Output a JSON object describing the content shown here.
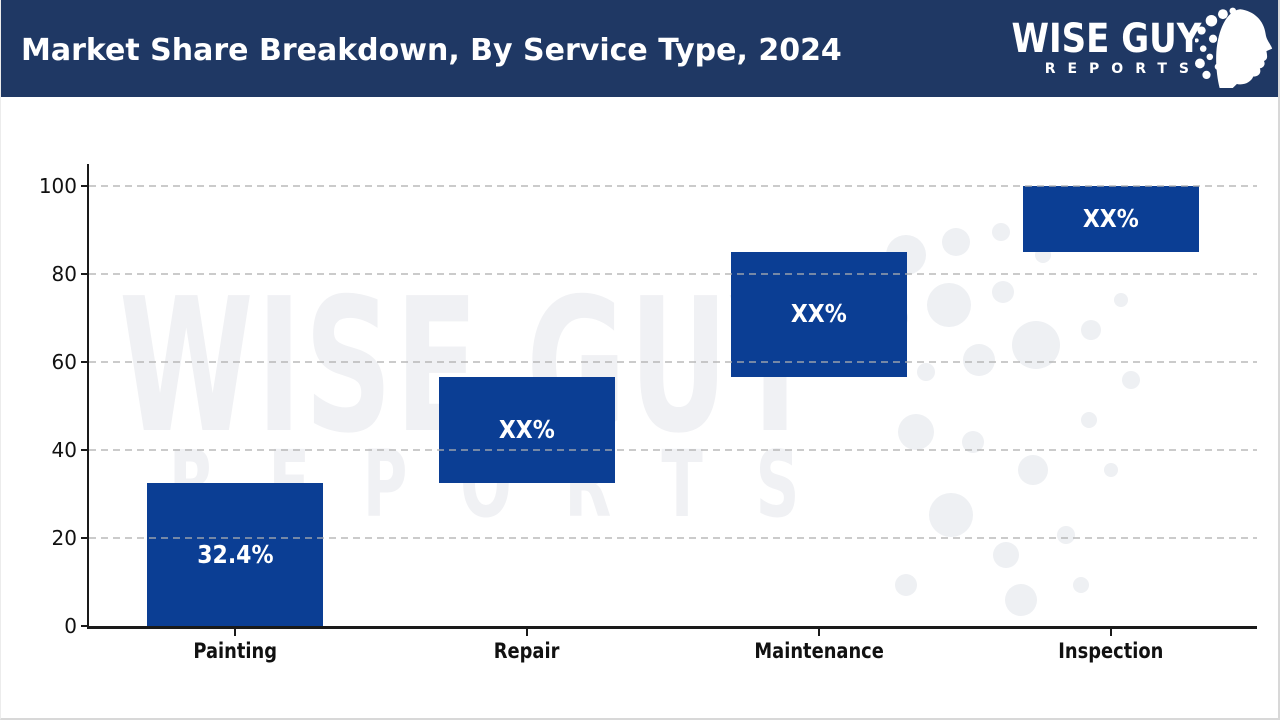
{
  "header": {
    "title": "Market Share Breakdown, By Service Type, 2024",
    "background_color": "#1f3864",
    "logo": {
      "wordmark": "WISE GUY",
      "subtext": "REPORTS"
    }
  },
  "watermark": {
    "line1": "WISE GUY",
    "line2": "REPORTS"
  },
  "chart_data": {
    "type": "bar",
    "subtype": "waterfall",
    "title": "Market Share Breakdown, By Service Type, 2024",
    "categories": [
      "Painting",
      "Repair",
      "Maintenance",
      "Inspection"
    ],
    "segments": [
      {
        "category": "Painting",
        "start": 0,
        "end": 32.4,
        "label": "32.4%"
      },
      {
        "category": "Repair",
        "start": 32.4,
        "end": 56.6,
        "label": "XX%"
      },
      {
        "category": "Maintenance",
        "start": 56.6,
        "end": 85.0,
        "label": "XX%"
      },
      {
        "category": "Inspection",
        "start": 85.0,
        "end": 100.0,
        "label": "XX%"
      }
    ],
    "yticks": [
      0,
      20,
      40,
      60,
      80,
      100
    ],
    "ylim": [
      0,
      105
    ],
    "xlabel": "",
    "ylabel": "",
    "grid": "horizontal-dashed",
    "legend": "none",
    "bar_color": "#0b3e94",
    "bar_label_color": "#ffffff",
    "axis_color": "#1a1a1a"
  }
}
